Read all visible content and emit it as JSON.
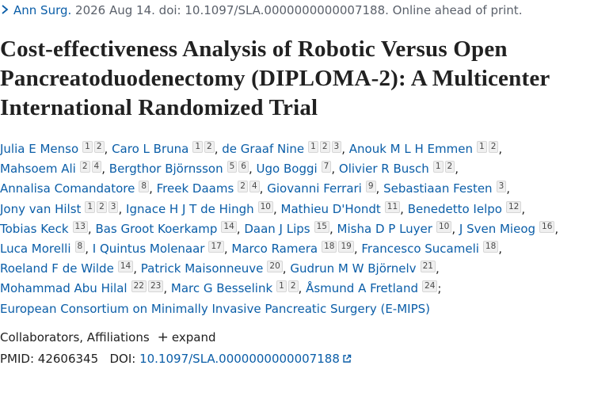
{
  "citation": {
    "journal": "Ann Surg.",
    "details": "2026 Aug 14. doi: 10.1097/SLA.0000000000007188. Online ahead of print."
  },
  "title": "Cost-effectiveness Analysis of Robotic Versus Open Pancreatoduodenectomy (DIPLOMA-2): A Multicenter International Randomized Trial",
  "authors": [
    {
      "name": "Julia E Menso",
      "affiliations": [
        1,
        2
      ]
    },
    {
      "name": "Caro L Bruna",
      "affiliations": [
        1,
        2
      ]
    },
    {
      "name": "de Graaf Nine",
      "affiliations": [
        1,
        2,
        3
      ]
    },
    {
      "name": "Anouk M L H Emmen",
      "affiliations": [
        1,
        2
      ]
    },
    {
      "name": "Mahsoem Ali",
      "affiliations": [
        2,
        4
      ]
    },
    {
      "name": "Bergthor Björnsson",
      "affiliations": [
        5,
        6
      ]
    },
    {
      "name": "Ugo Boggi",
      "affiliations": [
        7
      ]
    },
    {
      "name": "Olivier R Busch",
      "affiliations": [
        1,
        2
      ]
    },
    {
      "name": "Annalisa Comandatore",
      "affiliations": [
        8
      ]
    },
    {
      "name": "Freek Daams",
      "affiliations": [
        2,
        4
      ]
    },
    {
      "name": "Giovanni Ferrari",
      "affiliations": [
        9
      ]
    },
    {
      "name": "Sebastiaan Festen",
      "affiliations": [
        3
      ]
    },
    {
      "name": "Jony van Hilst",
      "affiliations": [
        1,
        2,
        3
      ]
    },
    {
      "name": "Ignace H J T de Hingh",
      "affiliations": [
        10
      ]
    },
    {
      "name": "Mathieu D'Hondt",
      "affiliations": [
        11
      ]
    },
    {
      "name": "Benedetto Ielpo",
      "affiliations": [
        12
      ]
    },
    {
      "name": "Tobias Keck",
      "affiliations": [
        13
      ]
    },
    {
      "name": "Bas Groot Koerkamp",
      "affiliations": [
        14
      ]
    },
    {
      "name": "Daan J Lips",
      "affiliations": [
        15
      ]
    },
    {
      "name": "Misha D P Luyer",
      "affiliations": [
        10
      ]
    },
    {
      "name": "J Sven Mieog",
      "affiliations": [
        16
      ]
    },
    {
      "name": "Luca Morelli",
      "affiliations": [
        8
      ]
    },
    {
      "name": "I Quintus Molenaar",
      "affiliations": [
        17
      ]
    },
    {
      "name": "Marco Ramera",
      "affiliations": [
        18,
        19
      ]
    },
    {
      "name": "Francesco Sucameli",
      "affiliations": [
        18
      ]
    },
    {
      "name": "Roeland F de Wilde",
      "affiliations": [
        14
      ]
    },
    {
      "name": "Patrick Maisonneuve",
      "affiliations": [
        20
      ]
    },
    {
      "name": "Gudrun M W Björnelv",
      "affiliations": [
        21
      ]
    },
    {
      "name": "Mohammad Abu Hilal",
      "affiliations": [
        22,
        23
      ]
    },
    {
      "name": "Marc G Besselink",
      "affiliations": [
        1,
        2
      ]
    },
    {
      "name": "Åsmund A Fretland",
      "affiliations": [
        24
      ]
    }
  ],
  "author_separator": ",",
  "author_list_end": ";",
  "group_author": "European Consortium on Minimally Invasive Pancreatic Surgery (E-MIPS)",
  "expander": {
    "label": "Collaborators, Affiliations",
    "action": "expand"
  },
  "identifiers": {
    "pmid_label": "PMID:",
    "pmid": "42606345",
    "doi_label": "DOI:",
    "doi": "10.1097/SLA.0000000000007188"
  }
}
